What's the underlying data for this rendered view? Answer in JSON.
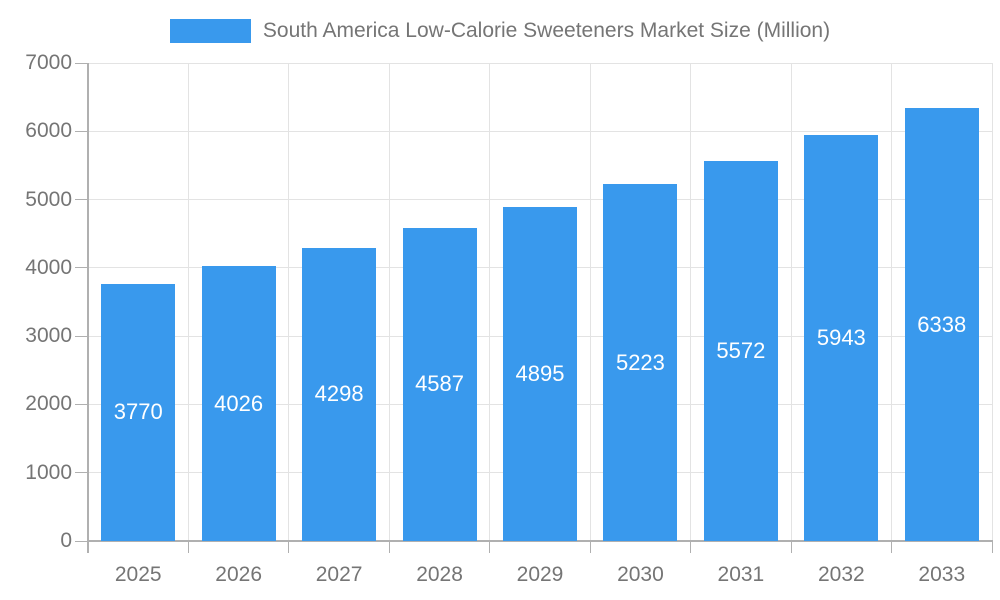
{
  "legend": {
    "label": "South America Low-Calorie Sweeteners Market Size (Million)"
  },
  "chart_data": {
    "type": "bar",
    "title": "South America Low-Calorie Sweeteners Market Size (Million)",
    "categories": [
      "2025",
      "2026",
      "2027",
      "2028",
      "2029",
      "2030",
      "2031",
      "2032",
      "2033"
    ],
    "values": [
      3770,
      4026,
      4298,
      4587,
      4895,
      5223,
      5572,
      5943,
      6338
    ],
    "xlabel": "",
    "ylabel": "",
    "ylim": [
      0,
      7000
    ],
    "yticks": [
      0,
      1000,
      2000,
      3000,
      4000,
      5000,
      6000,
      7000
    ],
    "grid": true,
    "legend_position": "top-center",
    "bar_labels_inside": true,
    "colors": {
      "bar": "#3999ED",
      "bar_label_text": "#FFFFFF",
      "axis_text": "#757575",
      "grid_line": "#E3E3E3",
      "axis_line": "#B0B0B0"
    }
  }
}
